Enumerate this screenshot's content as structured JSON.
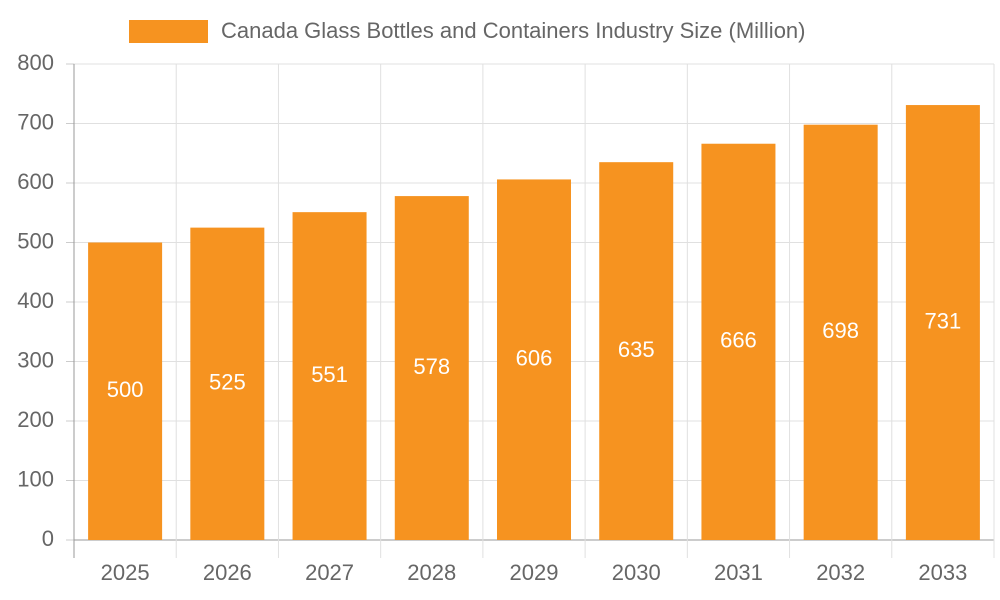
{
  "chart_data": {
    "type": "bar",
    "categories": [
      "2025",
      "2026",
      "2027",
      "2028",
      "2029",
      "2030",
      "2031",
      "2032",
      "2033"
    ],
    "series": [
      {
        "name": "Canada Glass Bottles and Containers Industry Size (Million)",
        "color": "#f69320",
        "values": [
          500,
          525,
          551,
          578,
          606,
          635,
          666,
          698,
          731
        ]
      }
    ],
    "ylim": [
      0,
      800
    ],
    "yticks": [
      0,
      100,
      200,
      300,
      400,
      500,
      600,
      700,
      800
    ],
    "grid": true,
    "legend": "top"
  }
}
